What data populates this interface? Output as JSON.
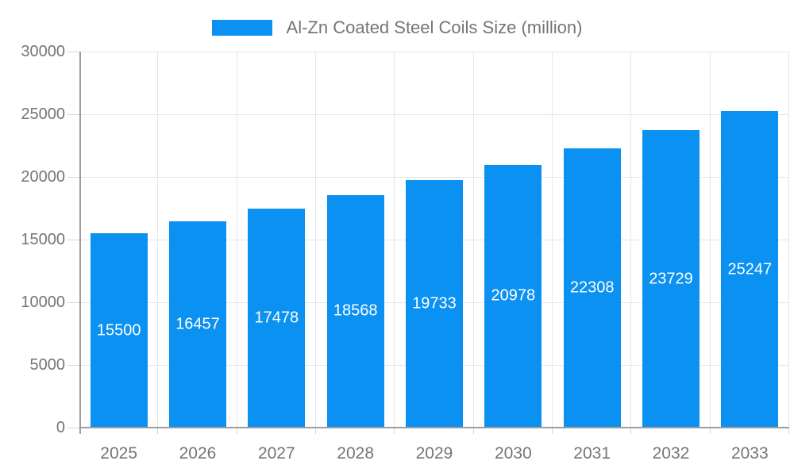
{
  "legend": {
    "label": "Al-Zn Coated Steel Coils Size (million)"
  },
  "colors": {
    "bar": "#0a91f2",
    "axis": "#9e9e9e",
    "grid": "#e6e6e6",
    "tick": "#d6d6d6",
    "tick_label": "#757575",
    "legend_text": "#757575",
    "bar_label": "#ffffff",
    "background": "#ffffff"
  },
  "chart_data": {
    "type": "bar",
    "title": "Al-Zn Coated Steel Coils Size (million)",
    "categories": [
      "2025",
      "2026",
      "2027",
      "2028",
      "2029",
      "2030",
      "2031",
      "2032",
      "2033"
    ],
    "values": [
      15500,
      16457,
      17478,
      18568,
      19733,
      20978,
      22308,
      23729,
      25247
    ],
    "series": [
      {
        "name": "Al-Zn Coated Steel Coils Size (million)",
        "values": [
          15500,
          16457,
          17478,
          18568,
          19733,
          20978,
          22308,
          23729,
          25247
        ]
      }
    ],
    "xlabel": "",
    "ylabel": "",
    "ylim": [
      0,
      30000
    ],
    "yticks": [
      0,
      5000,
      10000,
      15000,
      20000,
      25000,
      30000
    ],
    "grid": true,
    "legend_position": "top-center",
    "value_labels": "inside-center"
  }
}
